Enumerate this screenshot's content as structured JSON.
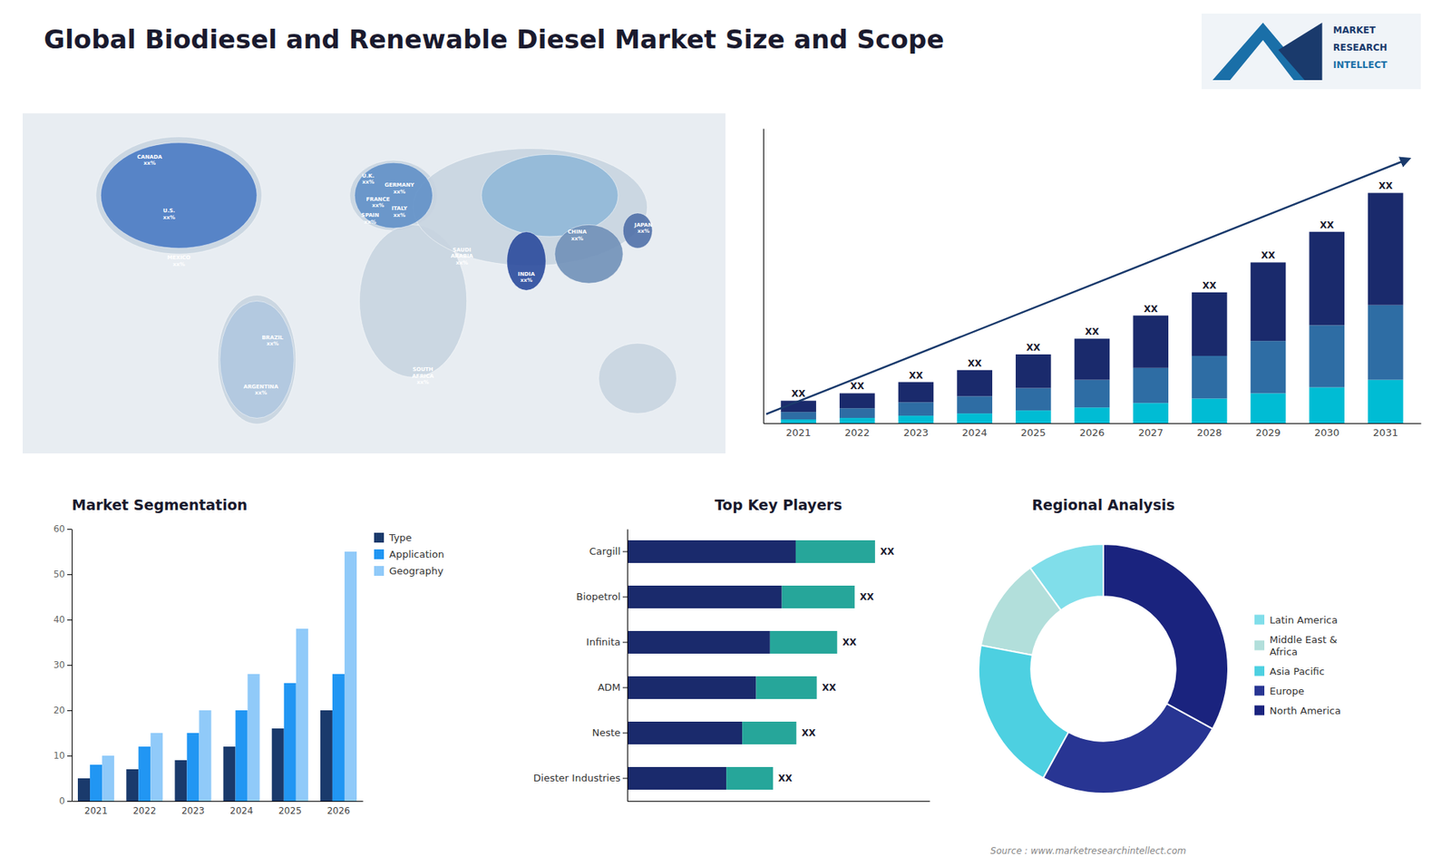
{
  "title": "Global Biodiesel and Renewable Diesel Market Size and Scope",
  "source": "Source : www.marketresearchintellect.com",
  "logo": [
    "MARKET",
    "RESEARCH",
    "INTELLECT"
  ],
  "chart_data": [
    {
      "type": "map",
      "xlim": [
        -180,
        180
      ],
      "ylim": [
        -60,
        85
      ],
      "base_regions": [
        {
          "cx": -100,
          "cy": 50,
          "w": 85,
          "h": 50,
          "color": "#c8d4e0"
        },
        {
          "cx": -60,
          "cy": -20,
          "w": 40,
          "h": 55,
          "color": "#c8d4e0"
        },
        {
          "cx": 10,
          "cy": 50,
          "w": 45,
          "h": 30,
          "color": "#c8d4e0"
        },
        {
          "cx": 20,
          "cy": 5,
          "w": 55,
          "h": 65,
          "color": "#c8d4e0"
        },
        {
          "cx": 80,
          "cy": 45,
          "w": 120,
          "h": 50,
          "color": "#c8d4e0"
        },
        {
          "cx": 135,
          "cy": -28,
          "w": 40,
          "h": 30,
          "color": "#c8d4e0"
        }
      ],
      "highlighted_regions": [
        {
          "cx": -100,
          "cy": 50,
          "w": 80,
          "h": 45,
          "color": "#4a7bc4"
        },
        {
          "cx": -60,
          "cy": -20,
          "w": 38,
          "h": 50,
          "color": "#b0c8e0"
        },
        {
          "cx": 10,
          "cy": 50,
          "w": 40,
          "h": 28,
          "color": "#6090c8"
        },
        {
          "cx": 90,
          "cy": 50,
          "w": 70,
          "h": 35,
          "color": "#90b8d8"
        },
        {
          "cx": 110,
          "cy": 25,
          "w": 35,
          "h": 25,
          "color": "#7090b8"
        },
        {
          "cx": 78,
          "cy": 22,
          "w": 20,
          "h": 25,
          "color": "#2a4a9c"
        },
        {
          "cx": 135,
          "cy": 35,
          "w": 15,
          "h": 15,
          "color": "#5070a8"
        }
      ],
      "labels": [
        {
          "text": "CANADA\nxx%",
          "x": -115,
          "y": 65
        },
        {
          "text": "U.S.\nxx%",
          "x": -105,
          "y": 42
        },
        {
          "text": "MEXICO\nxx%",
          "x": -100,
          "y": 22
        },
        {
          "text": "BRAZIL\nxx%",
          "x": -52,
          "y": -12
        },
        {
          "text": "ARGENTINA\nxx%",
          "x": -58,
          "y": -33
        },
        {
          "text": "U.K.\nxx%",
          "x": -3,
          "y": 57
        },
        {
          "text": "FRANCE\nxx%",
          "x": 2,
          "y": 47
        },
        {
          "text": "SPAIN\nxx%",
          "x": -2,
          "y": 40
        },
        {
          "text": "GERMANY\nxx%",
          "x": 13,
          "y": 53
        },
        {
          "text": "ITALY\nxx%",
          "x": 13,
          "y": 43
        },
        {
          "text": "SAUDI\nARABIA\nxx%",
          "x": 45,
          "y": 24
        },
        {
          "text": "SOUTH\nAFRICA\nxx%",
          "x": 25,
          "y": -27
        },
        {
          "text": "CHINA\nxx%",
          "x": 104,
          "y": 33
        },
        {
          "text": "INDIA\nxx%",
          "x": 78,
          "y": 15
        },
        {
          "text": "JAPAN\nxx%",
          "x": 138,
          "y": 36
        }
      ]
    },
    {
      "type": "bar",
      "stacked": true,
      "categories": [
        "2021",
        "2022",
        "2023",
        "2024",
        "2025",
        "2026",
        "2027",
        "2028",
        "2029",
        "2030",
        "2031"
      ],
      "series": [
        {
          "color": "#00bcd4",
          "values": [
            0.5,
            0.7,
            1.0,
            1.3,
            1.7,
            2.1,
            2.7,
            3.3,
            4.0,
            4.8,
            5.8
          ]
        },
        {
          "color": "#2e6da4",
          "values": [
            1.0,
            1.3,
            1.8,
            2.3,
            3.0,
            3.7,
            4.7,
            5.7,
            7.0,
            8.3,
            10.0
          ]
        },
        {
          "color": "#1a2a6c",
          "values": [
            1.5,
            2.0,
            2.7,
            3.5,
            4.5,
            5.5,
            7.0,
            8.5,
            10.5,
            12.5,
            15.0
          ]
        }
      ],
      "bar_labels": [
        "XX",
        "XX",
        "XX",
        "XX",
        "XX",
        "XX",
        "XX",
        "XX",
        "XX",
        "XX",
        "XX"
      ],
      "ylim": [
        0,
        39.424
      ],
      "tick_labels": "x",
      "grid": false
    },
    {
      "type": "bar",
      "title": "Market Segmentation",
      "categories": [
        "2021",
        "2022",
        "2023",
        "2024",
        "2025",
        "2026"
      ],
      "series": [
        {
          "name": "Type",
          "color": "#1a3a6c",
          "values": [
            5,
            7,
            9,
            12,
            16,
            20
          ]
        },
        {
          "name": "Application",
          "color": "#2196f3",
          "values": [
            8,
            12,
            15,
            20,
            26,
            28
          ]
        },
        {
          "name": "Geography",
          "color": "#90caf9",
          "values": [
            10,
            15,
            20,
            28,
            38,
            55
          ]
        }
      ],
      "ylim": [
        0,
        60
      ],
      "yticks": [
        0,
        10,
        20,
        30,
        40,
        50,
        60
      ],
      "legend": "upper right",
      "grid": false
    },
    {
      "type": "bar",
      "title": "Top Key Players",
      "orientation": "horizontal",
      "stacked": true,
      "categories": [
        "Cargill",
        "Biopetrol",
        "Infinita",
        "ADM",
        "Neste",
        "Diester Industries"
      ],
      "series": [
        {
          "color": "#1a2a6c",
          "values": [
            57.8,
            53.04,
            48.96,
            44.2,
            39.44,
            34.0
          ]
        },
        {
          "color": "#26a69a",
          "values": [
            27.2,
            24.96,
            23.04,
            20.8,
            18.56,
            16.0
          ]
        }
      ],
      "bar_labels": [
        "XX",
        "XX",
        "XX",
        "XX",
        "XX",
        "XX"
      ],
      "xlim": [
        0,
        103.7
      ],
      "tick_labels": "y",
      "grid": false
    },
    {
      "type": "donut",
      "title": "Regional Analysis",
      "categories": [
        "Latin America",
        "Middle East &\nAfrica",
        "Asia Pacific",
        "Europe",
        "North America"
      ],
      "values": [
        10,
        12,
        20,
        25,
        33
      ],
      "colors": [
        "#80deea",
        "#b2dfdb",
        "#4dd0e1",
        "#283593",
        "#1a237e"
      ],
      "legend": "right"
    }
  ]
}
